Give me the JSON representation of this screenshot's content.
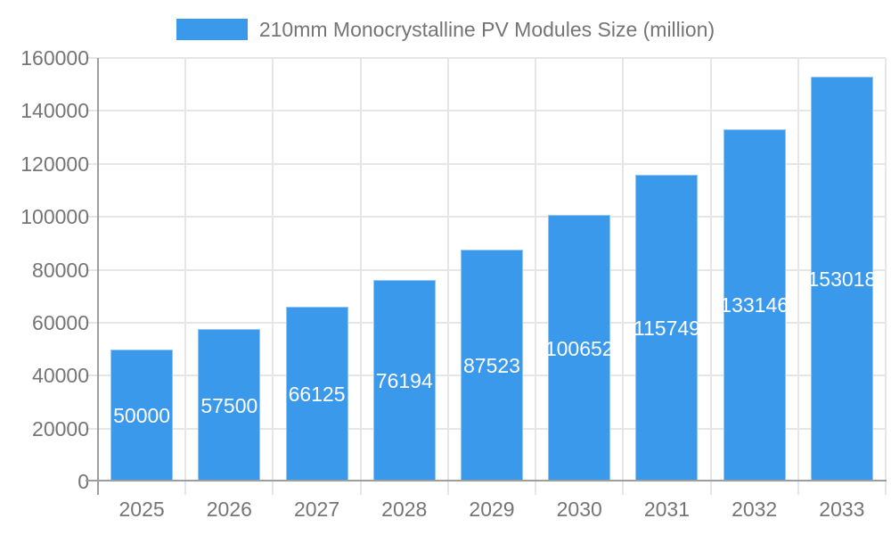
{
  "chart_data": {
    "type": "bar",
    "title": "",
    "legend": {
      "label": "210mm Monocrystalline PV Modules Size (million)",
      "position": "top"
    },
    "categories": [
      "2025",
      "2026",
      "2027",
      "2028",
      "2029",
      "2030",
      "2031",
      "2032",
      "2033"
    ],
    "series": [
      {
        "name": "210mm Monocrystalline PV Modules Size (million)",
        "values": [
          50000,
          57500,
          66125,
          76194,
          87523,
          100652,
          115749,
          133146,
          153018
        ]
      }
    ],
    "value_labels_shown": true,
    "xlabel": "",
    "ylabel": "",
    "ylim": [
      0,
      160000
    ],
    "yticks": [
      0,
      20000,
      40000,
      60000,
      80000,
      100000,
      120000,
      140000,
      160000
    ],
    "grid": "both",
    "colors": {
      "bar": "#3b99ec",
      "grid": "#e6e6e6",
      "axis": "#9e9e9e",
      "tick_label": "#757575",
      "value_label": "#ffffff",
      "background": "#ffffff"
    }
  }
}
